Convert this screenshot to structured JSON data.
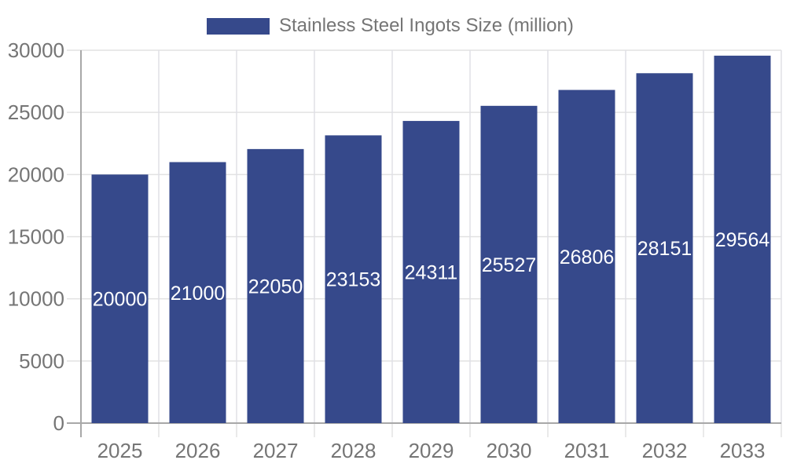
{
  "chart_data": {
    "type": "bar",
    "categories": [
      "2025",
      "2026",
      "2027",
      "2028",
      "2029",
      "2030",
      "2031",
      "2032",
      "2033"
    ],
    "series": [
      {
        "name": "Stainless Steel Ingots Size (million)",
        "values": [
          20000,
          21000,
          22050,
          23153,
          24311,
          25527,
          26806,
          28151,
          29564
        ]
      }
    ],
    "legend": {
      "label": "Stainless Steel Ingots Size (million)",
      "position": "top"
    },
    "xlabel": "",
    "ylabel": "",
    "ylim": [
      0,
      30000
    ],
    "yticks": [
      0,
      5000,
      10000,
      15000,
      20000,
      25000,
      30000
    ],
    "grid": true,
    "bar_labels_inside": true,
    "colors": {
      "bar": "#36498b",
      "bar_label": "#ffffff",
      "axis_line": "#a8a8a8",
      "gridline": "#e2e2e2",
      "gridline_vertical": "#e0e0e6",
      "tick_label": "#757575",
      "legend_text": "#757575",
      "background": "#ffffff"
    }
  }
}
